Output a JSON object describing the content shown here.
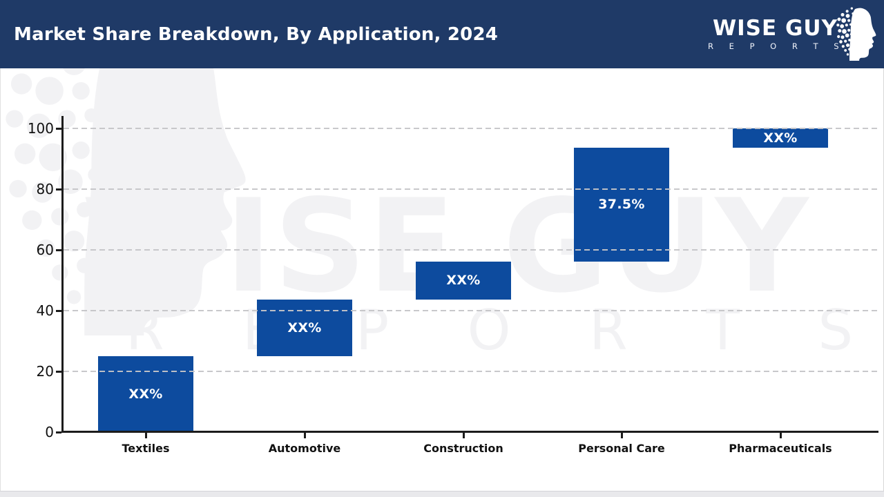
{
  "header": {
    "title": "Market Share Breakdown, By Application, 2024",
    "bg_color": "#1f3a67",
    "logo": {
      "line1": "WISE GUY",
      "line2": "R E P O R T S",
      "icon": "dotted-face-profile"
    }
  },
  "watermark": {
    "line1": "WISE GUY",
    "line2": "R E P O R T S",
    "icon": "dotted-face-profile"
  },
  "footer": {
    "strip_color": "#e9e9ec"
  },
  "chart_data": {
    "type": "bar",
    "subtype": "floating-segment-waterfall",
    "title": "Market Share Breakdown, By Application, 2024",
    "categories": [
      "Textiles",
      "Automotive",
      "Construction",
      "Personal Care",
      "Pharmaceuticals"
    ],
    "series": [
      {
        "name": "Market share (%)",
        "segments": [
          {
            "category": "Textiles",
            "start": 0,
            "end": 25,
            "size": 25,
            "label": "XX%"
          },
          {
            "category": "Automotive",
            "start": 25,
            "end": 43.75,
            "size": 18.75,
            "label": "XX%"
          },
          {
            "category": "Construction",
            "start": 43.75,
            "end": 56.25,
            "size": 12.5,
            "label": "XX%"
          },
          {
            "category": "Personal Care",
            "start": 56.25,
            "end": 93.75,
            "size": 37.5,
            "label": "37.5%"
          },
          {
            "category": "Pharmaceuticals",
            "start": 93.75,
            "end": 100,
            "size": 6.25,
            "label": "XX%"
          }
        ]
      }
    ],
    "xlabel": "",
    "ylabel": "",
    "ylim": [
      0,
      105
    ],
    "yticks": [
      0,
      20,
      40,
      60,
      80,
      100
    ],
    "grid": "horizontal dashed, drawn over bars",
    "legend": "none",
    "bar_color": "#0d4b9e",
    "bar_label_color": "#ffffff",
    "axis_color": "#1c1c1c",
    "gridline_color": "#c8c8cb"
  }
}
